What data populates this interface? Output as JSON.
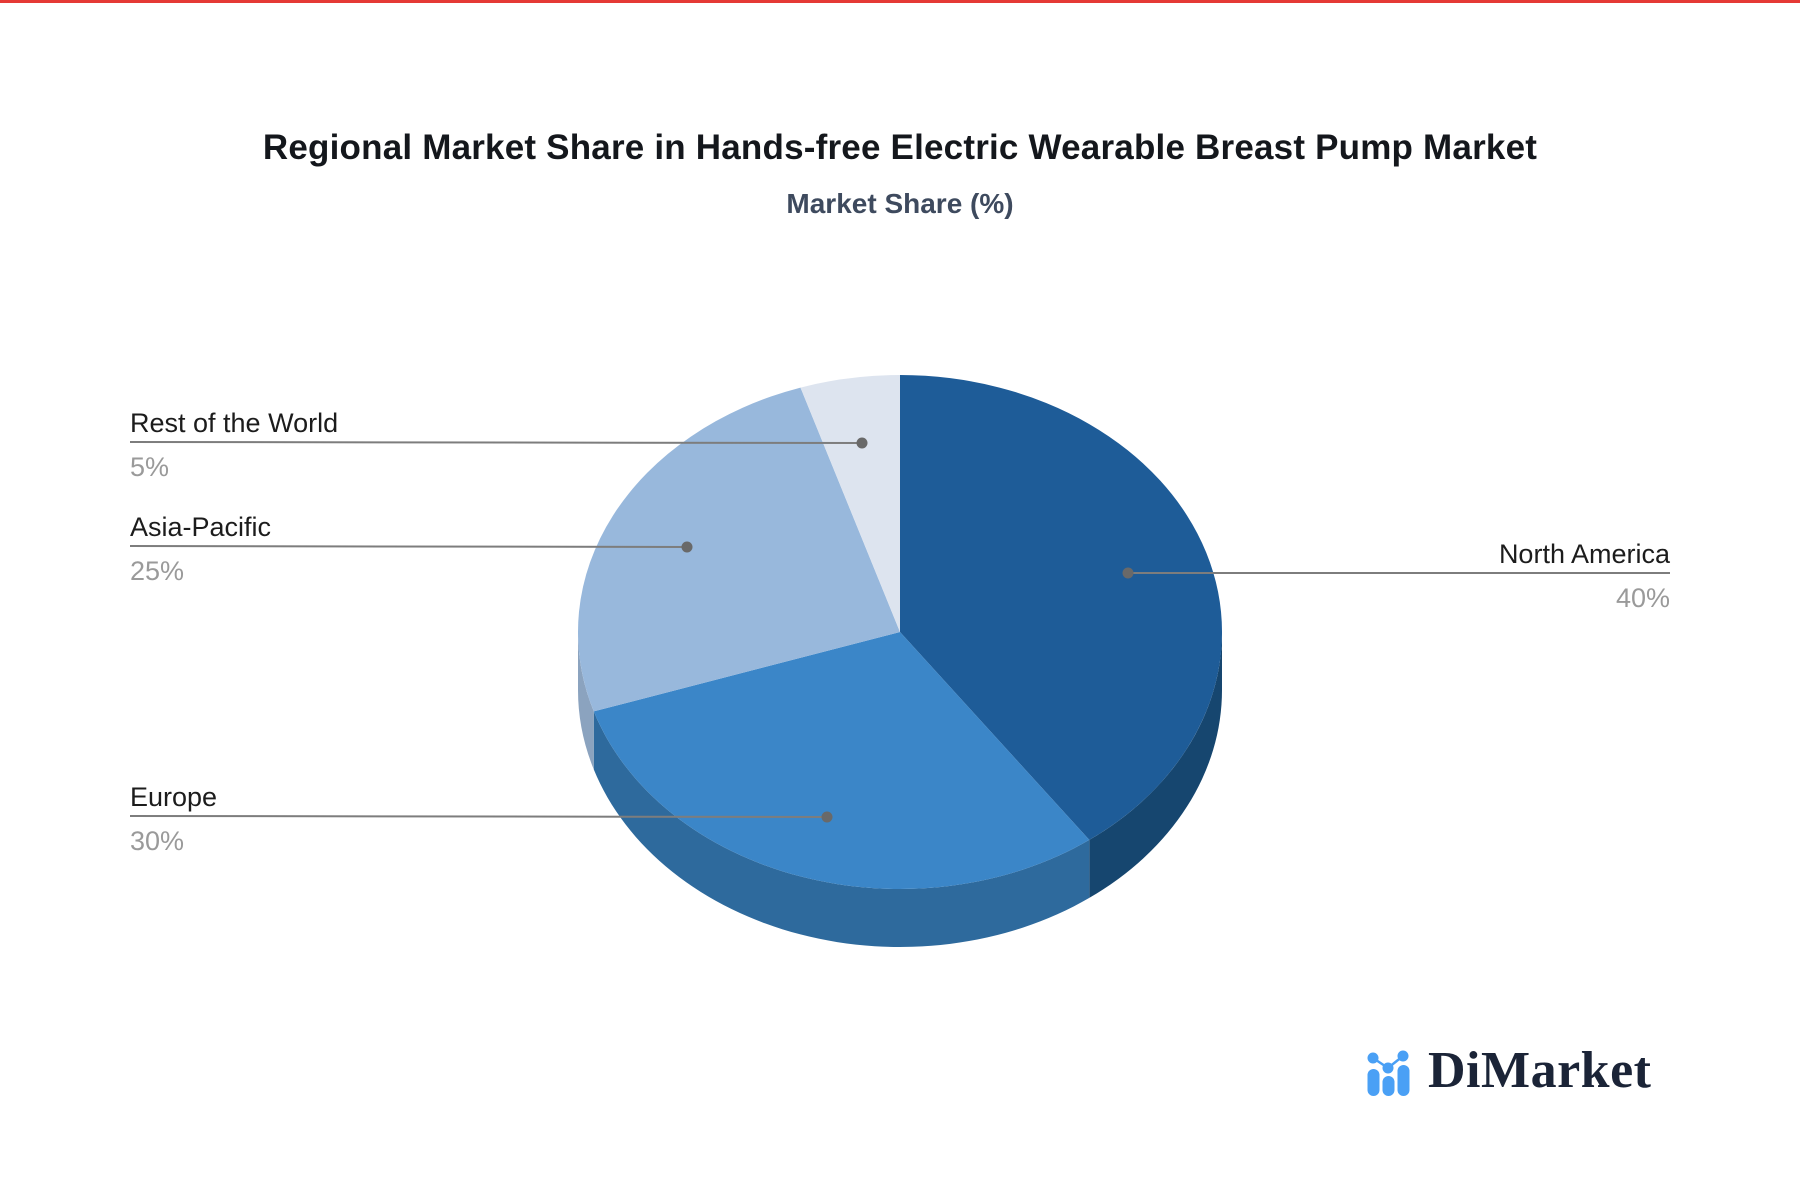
{
  "page": {
    "top_border_color": "#e53935",
    "background": "#ffffff"
  },
  "chart_data": {
    "type": "pie",
    "effect": "3d",
    "title": "Regional Market Share in Hands-free Electric Wearable Breast Pump Market",
    "subtitle": "Market Share (%)",
    "unit": "%",
    "legend_position": "none",
    "start_angle_deg": 0,
    "direction": "clockwise",
    "segments": [
      {
        "label": "North America",
        "value": 40,
        "value_label": "40%",
        "color": "#1e5c98",
        "side_color": "#16466f"
      },
      {
        "label": "Europe",
        "value": 30,
        "value_label": "30%",
        "color": "#3b86c8",
        "side_color": "#2e6a9d"
      },
      {
        "label": "Asia-Pacific",
        "value": 25,
        "value_label": "25%",
        "color": "#98b8dc",
        "side_color": "#8ba3bf"
      },
      {
        "label": "Rest of the World",
        "value": 5,
        "value_label": "5%",
        "color": "#dde4ef",
        "side_color": "#c5cedd"
      }
    ],
    "leader_line_color": "#7d7d7d",
    "leader_dot_color": "#696969",
    "label_name_color": "#1c1c1c",
    "label_value_color": "#9a9a9a"
  },
  "branding": {
    "logo_text": "DiMarket",
    "logo_text_color": "#1b2437",
    "logo_icon_color": "#4aa0f5"
  }
}
